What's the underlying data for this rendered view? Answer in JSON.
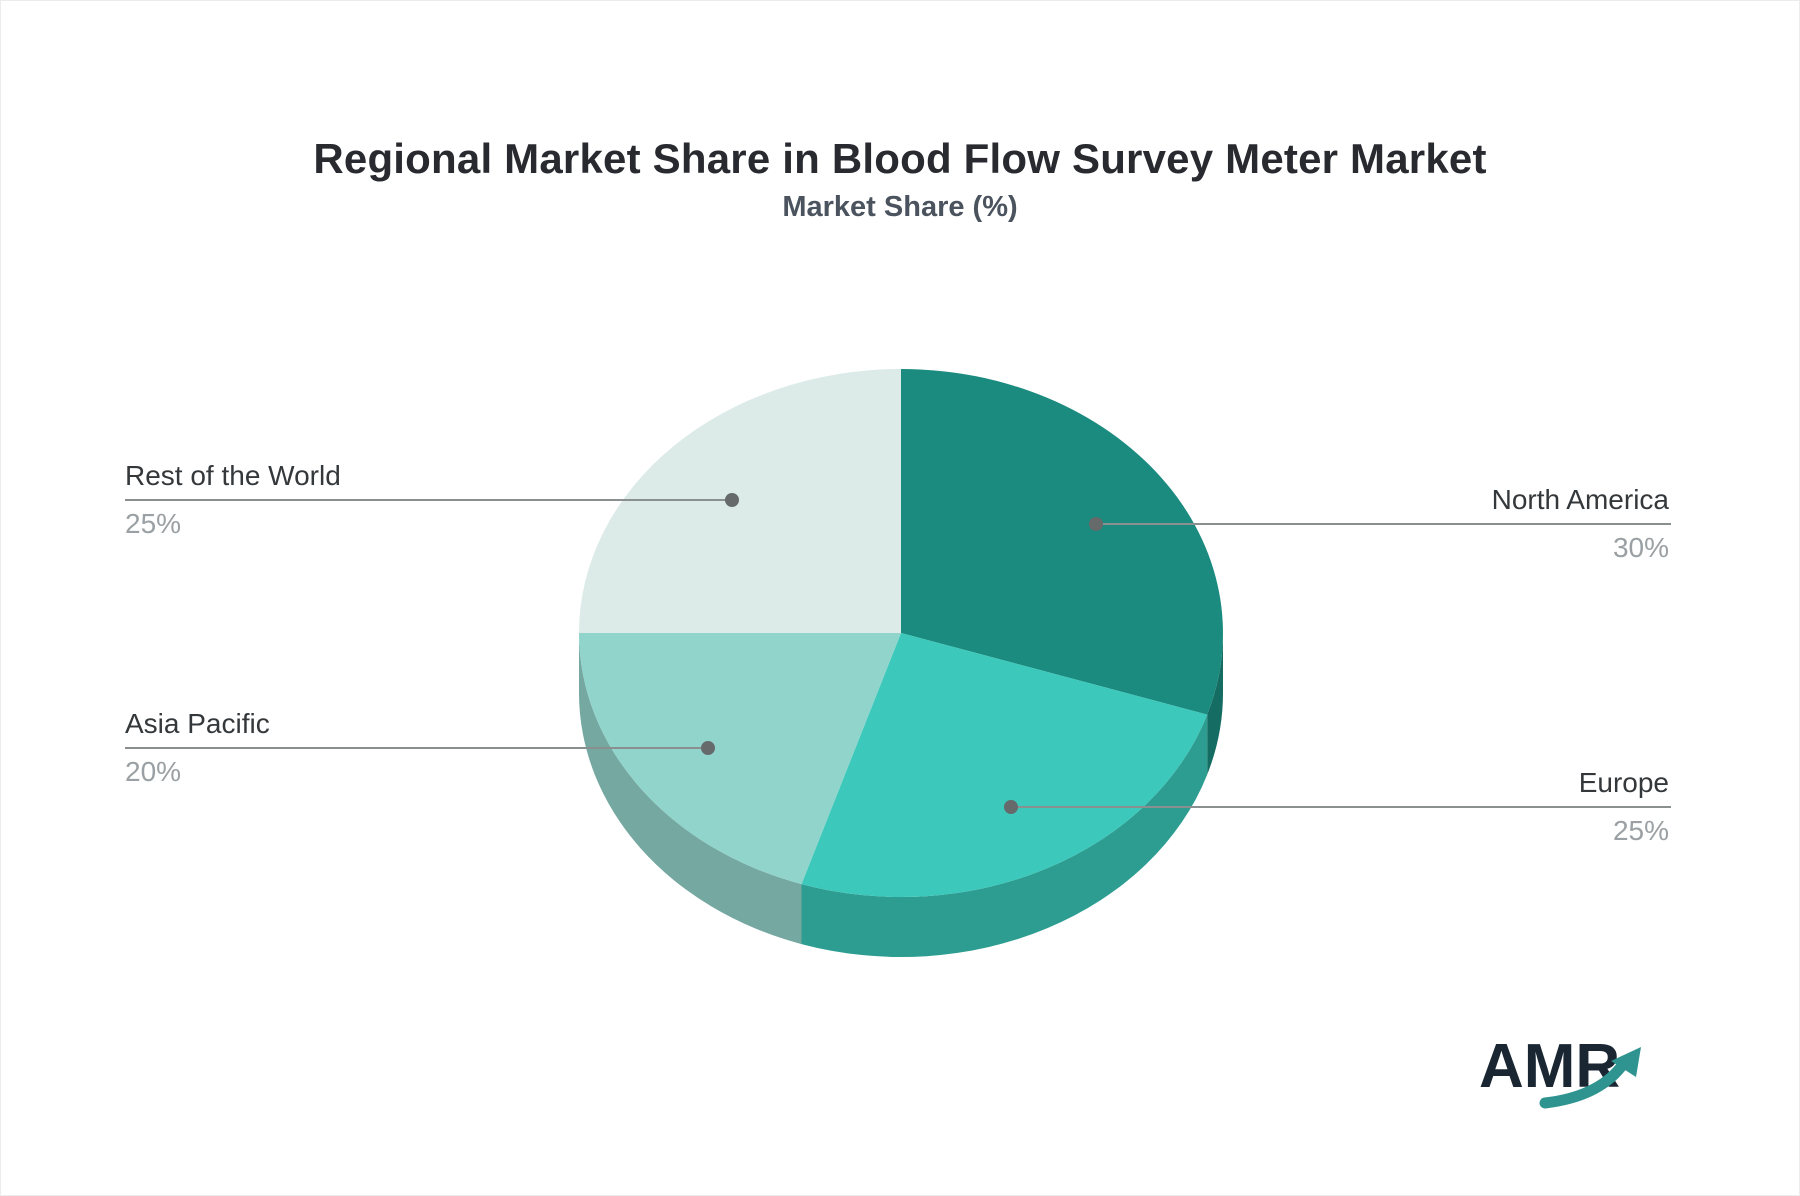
{
  "title": "Regional Market Share in Blood Flow Survey Meter Market",
  "subtitle": "Market Share (%)",
  "chart_data": {
    "type": "pie",
    "style": "3d",
    "title": "Regional Market Share in Blood Flow Survey Meter Market",
    "subtitle": "Market Share (%)",
    "unit": "%",
    "direction": "clockwise",
    "start_angle_deg": 0,
    "legend": "none",
    "label_style": "outside callouts with leader lines",
    "slices": [
      {
        "label": "North America",
        "value": 30,
        "display": "30%",
        "color": "#1a8b7e",
        "side_color": "#156c62"
      },
      {
        "label": "Europe",
        "value": 25,
        "display": "25%",
        "color": "#3cc9bb",
        "side_color": "#2d9d91"
      },
      {
        "label": "Asia Pacific",
        "value": 20,
        "display": "20%",
        "color": "#90d4cb",
        "side_color": "#74a8a1"
      },
      {
        "label": "Rest of the World",
        "value": 25,
        "display": "25%",
        "color": "#dcebe8",
        "side_color": "#a9c6c2"
      }
    ]
  },
  "callouts": {
    "north_america": {
      "label": "North America",
      "value": "30%"
    },
    "europe": {
      "label": "Europe",
      "value": "25%"
    },
    "asia_pacific": {
      "label": "Asia Pacific",
      "value": "20%"
    },
    "rest_of_the_world": {
      "label": "Rest of the World",
      "value": "25%"
    }
  },
  "colors": {
    "leader_line": "#8a8f90",
    "leader_dot": "#666a6b",
    "title": "#282a30",
    "subtitle": "#4b545e",
    "label_name": "#34383b",
    "label_value": "#9aa0a3",
    "logo_text": "#1a2733",
    "logo_arrow": "#2f9490"
  },
  "logo": {
    "text": "AMR"
  }
}
